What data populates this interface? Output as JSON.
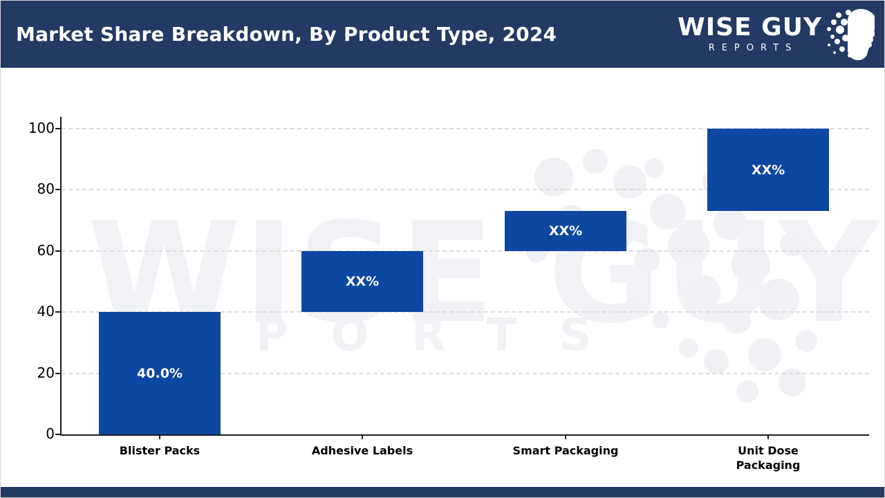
{
  "header": {
    "title": "Market Share Breakdown, By Product Type, 2024",
    "logo_line1": "WISE GUY",
    "logo_line2": "REPORTS"
  },
  "watermark": {
    "big_text": "WISE GUY",
    "small_text": "REPORTS"
  },
  "chart_data": {
    "type": "bar",
    "variant": "waterfall",
    "title": "Market Share Breakdown, By Product Type, 2024",
    "categories": [
      "Blister Packs",
      "Adhesive Labels",
      "Smart Packaging",
      "Unit Dose\nPackaging"
    ],
    "segments": [
      {
        "category": "Blister Packs",
        "start": 0,
        "end": 40,
        "label": "40.0%"
      },
      {
        "category": "Adhesive Labels",
        "start": 40,
        "end": 60,
        "label": "XX%"
      },
      {
        "category": "Smart Packaging",
        "start": 60,
        "end": 73,
        "label": "XX%"
      },
      {
        "category": "Unit Dose Packaging",
        "start": 73,
        "end": 100,
        "label": "XX%"
      }
    ],
    "xlabel": "",
    "ylabel": "",
    "ylim": [
      0,
      100
    ],
    "yticks": [
      0,
      20,
      40,
      60,
      80,
      100
    ],
    "grid": "horizontal-dashed",
    "legend": "none"
  },
  "colors": {
    "header_bg": "#223A64",
    "footer_bg": "#223A64",
    "bar_fill": "#0C47A1",
    "bar_label": "#FFFFFF",
    "gridline": "#DCDCDC",
    "axis": "#1A1A1A",
    "watermark": "#F1F2F5"
  }
}
